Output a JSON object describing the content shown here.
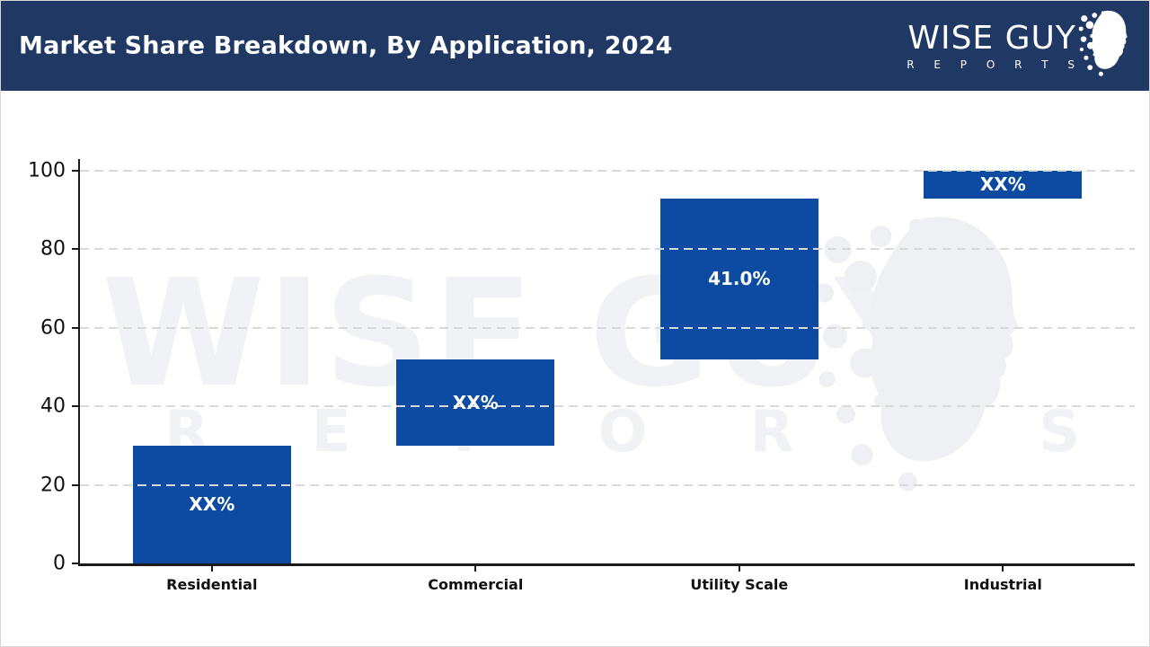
{
  "header": {
    "title": "Market Share Breakdown, By Application, 2024",
    "bg_color": "#1f3864",
    "logo": {
      "name": "WISE GUY",
      "sub": "R E P O R T S"
    }
  },
  "watermark": {
    "line1": "WISE GUY",
    "line2": "R E P O R T S"
  },
  "chart_data": {
    "type": "bar",
    "subtype": "floating-waterfall",
    "title": "Market Share Breakdown, By Application, 2024",
    "categories": [
      "Residential",
      "Commercial",
      "Utility Scale",
      "Industrial"
    ],
    "series": [
      {
        "name": "Market share (%)",
        "segments": [
          {
            "category": "Residential",
            "start": 0,
            "end": 30,
            "value_label": "XX%"
          },
          {
            "category": "Commercial",
            "start": 30,
            "end": 52,
            "value_label": "XX%"
          },
          {
            "category": "Utility Scale",
            "start": 52,
            "end": 93,
            "value_label": "41.0%"
          },
          {
            "category": "Industrial",
            "start": 93,
            "end": 100,
            "value_label": "XX%"
          }
        ]
      }
    ],
    "xlabel": "",
    "ylabel": "",
    "ylim": [
      0,
      103
    ],
    "yticks": [
      0,
      20,
      40,
      60,
      80,
      100
    ],
    "grid": "horizontal-dashed-over-bars",
    "legend": "none",
    "bar_color": "#0d4ba3",
    "label_color": "#ffffff",
    "axis_color": "#1a1a1a",
    "grid_color": "#d9d9d9"
  }
}
